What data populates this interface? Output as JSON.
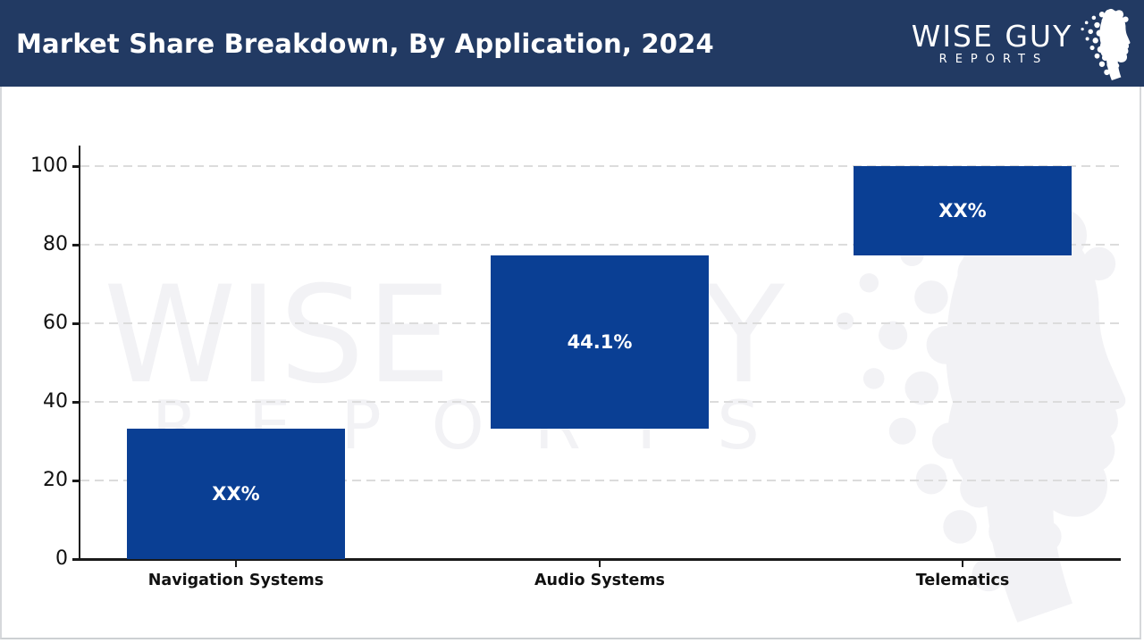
{
  "header": {
    "title": "Market Share Breakdown, By Application, 2024",
    "brand": {
      "name": "WISE GUY",
      "tagline": "REPORTS"
    }
  },
  "watermark": {
    "name": "WISE GUY",
    "tagline": "REPORTS"
  },
  "chart_data": {
    "type": "bar",
    "variant": "waterfall",
    "title": "Market Share Breakdown, By Application, 2024",
    "categories": [
      "Navigation Systems",
      "Audio Systems",
      "Telematics"
    ],
    "segments": [
      {
        "category": "Navigation Systems",
        "start": 0,
        "end": 33.2,
        "label": "XX%"
      },
      {
        "category": "Audio Systems",
        "start": 33.2,
        "end": 77.3,
        "label": "44.1%"
      },
      {
        "category": "Telematics",
        "start": 77.3,
        "end": 100,
        "label": "XX%"
      }
    ],
    "yticks": [
      0,
      20,
      40,
      60,
      80,
      100
    ],
    "ylim": [
      0,
      105
    ],
    "xlabel": "",
    "ylabel": "",
    "grid": "horizontal-dashed",
    "legend": "none",
    "bar_color": "#0a3f94",
    "bar_label_color": "#ffffff",
    "axis_color": "#1a1a1a",
    "grid_color": "#dcdcdc"
  },
  "colors": {
    "header_bg": "#223a63",
    "header_text": "#ffffff",
    "watermark": "#f2f2f5",
    "frame_border": "#d6d8db"
  }
}
